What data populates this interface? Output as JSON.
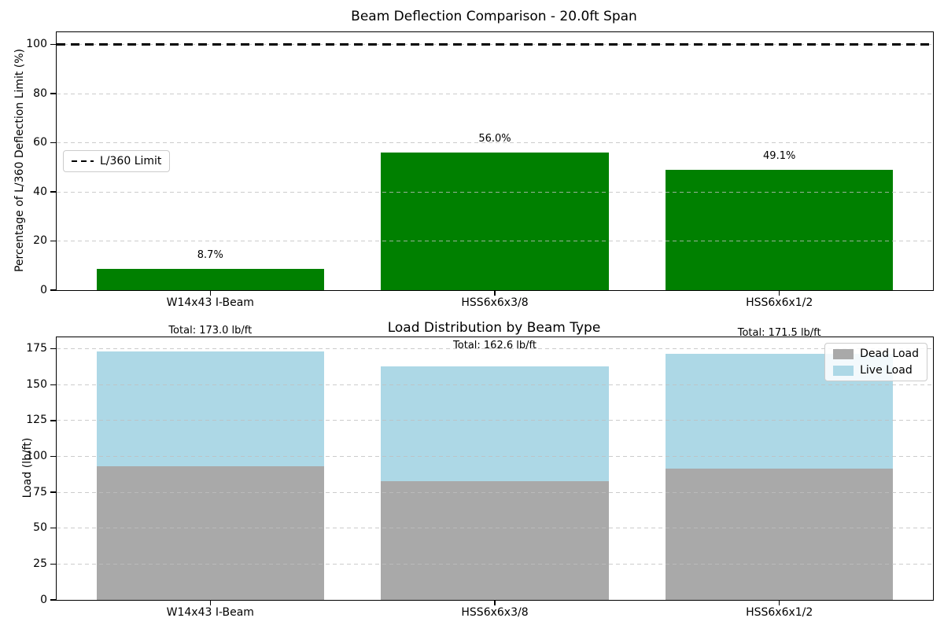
{
  "figure": {
    "background": "#ffffff",
    "grid_color": "#bfbfbf",
    "spine_color": "#000000"
  },
  "chart_data": [
    {
      "type": "bar",
      "title": "Beam Deflection Comparison - 20.0ft Span",
      "xlabel": "",
      "ylabel": "Percentage of L/360 Deflection Limit (%)",
      "categories": [
        "W14x43 I-Beam",
        "HSS6x6x3/8",
        "HSS6x6x1/2"
      ],
      "values": [
        8.7,
        56.0,
        49.1
      ],
      "bar_labels": [
        "8.7%",
        "56.0%",
        "49.1%"
      ],
      "bar_color": "#008000",
      "yticks": [
        0,
        20,
        40,
        60,
        80,
        100
      ],
      "ylim": [
        0,
        105
      ],
      "grid": "y-dashed",
      "limit_line": {
        "value": 100,
        "color": "#000000",
        "style": "dashed"
      },
      "legend": {
        "position": "center-left",
        "entries": [
          {
            "label": "L/360 Limit",
            "type": "dashed-line",
            "color": "#000000"
          }
        ]
      }
    },
    {
      "type": "stacked-bar",
      "title": "Load Distribution by Beam Type",
      "xlabel": "",
      "ylabel": "Load (lb/ft)",
      "categories": [
        "W14x43 I-Beam",
        "HSS6x6x3/8",
        "HSS6x6x1/2"
      ],
      "series": [
        {
          "name": "Dead Load",
          "color": "#A9A9A9",
          "values": [
            93.0,
            82.6,
            91.5
          ]
        },
        {
          "name": "Live Load",
          "color": "#ADD8E6",
          "values": [
            80.0,
            80.0,
            80.0
          ]
        }
      ],
      "totals": [
        173.0,
        162.6,
        171.5
      ],
      "total_labels": [
        "Total: 173.0 lb/ft",
        "Total: 162.6 lb/ft",
        "Total: 171.5 lb/ft"
      ],
      "yticks": [
        0,
        25,
        50,
        75,
        100,
        125,
        150,
        175
      ],
      "ylim": [
        0,
        183
      ],
      "grid": "y-dashed",
      "legend": {
        "position": "upper-right",
        "entries": [
          {
            "label": "Dead Load",
            "type": "patch",
            "color": "#A9A9A9"
          },
          {
            "label": "Live Load",
            "type": "patch",
            "color": "#ADD8E6"
          }
        ]
      }
    }
  ]
}
